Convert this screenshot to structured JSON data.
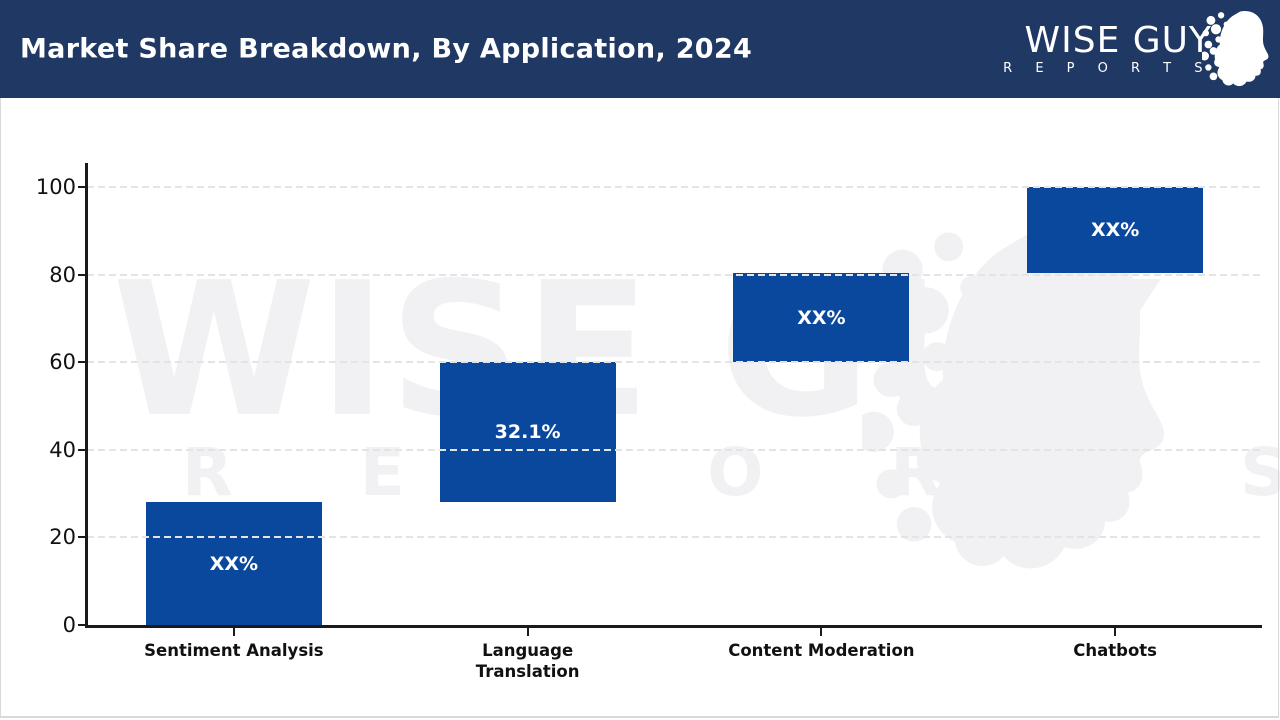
{
  "header": {
    "title": "Market Share Breakdown, By Application, 2024",
    "logo": {
      "wordmark": "WISE GUY",
      "sub": "R E P O R T S",
      "face_icon": "dotted-head-profile-icon"
    }
  },
  "watermark": {
    "wordmark": "WISE GUY",
    "sub": "R E P O R T S",
    "face_icon": "dotted-head-profile-icon"
  },
  "colors": {
    "header_bg": "#1f3864",
    "bar_fill": "#0a489e",
    "bar_label": "#ffffff",
    "axis": "#1a1a1a",
    "gridline": "#e4e4e4",
    "watermark": "#f1f1f3",
    "frame_hairline": "#d9d9d9"
  },
  "chart_data": {
    "type": "bar",
    "subtype": "waterfall",
    "title": "Market Share Breakdown, By Application, 2024",
    "xlabel": "",
    "ylabel": "",
    "ylim": [
      0,
      105
    ],
    "y_ticks": [
      0,
      20,
      40,
      60,
      80,
      100
    ],
    "grid": "horizontal-dashed, drawn above bars",
    "legend": "none",
    "categories": [
      "Sentiment Analysis",
      "Language\nTranslation",
      "Content Moderation",
      "Chatbots"
    ],
    "bars": [
      {
        "category": "Sentiment Analysis",
        "start": 0,
        "end": 28,
        "value_shown": "XX%"
      },
      {
        "category": "Language\nTranslation",
        "start": 28,
        "end": 60.1,
        "value_shown": "32.1%",
        "value": 32.1
      },
      {
        "category": "Content Moderation",
        "start": 60.1,
        "end": 80.3,
        "value_shown": "XX%"
      },
      {
        "category": "Chatbots",
        "start": 80.3,
        "end": 100,
        "value_shown": "XX%"
      }
    ],
    "bar_color": "#0a489e",
    "bar_label_color": "#ffffff"
  }
}
